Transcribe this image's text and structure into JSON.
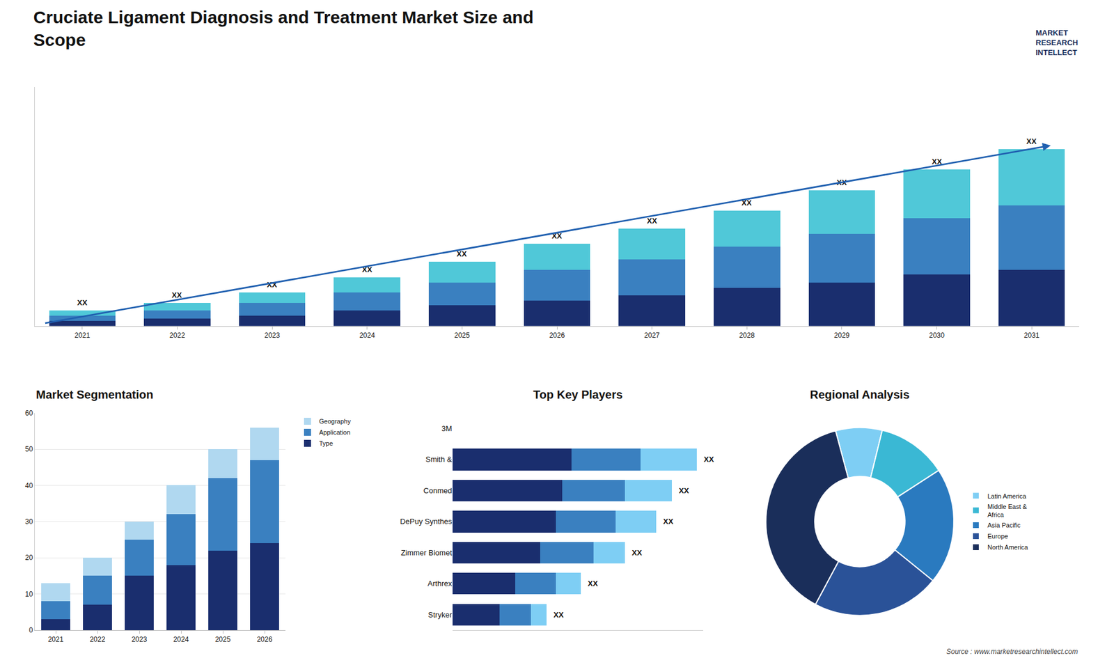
{
  "title": "Cruciate Ligament Diagnosis and Treatment Market Size and\nScope",
  "annotations": [
    "MARKET\nRESEARCH\nINTELLECT",
    "Source : www.marketresearchintellect.com"
  ],
  "chart_data": [
    {
      "type": "bar",
      "stacked": true,
      "categories": [
        2021,
        2022,
        2023,
        2024,
        2025,
        2026,
        2027,
        2028,
        2029,
        2030,
        2031
      ],
      "series": [
        {
          "color": "#1a2e6e",
          "values": [
            2,
            3,
            4,
            6,
            8,
            10,
            12,
            15,
            17,
            20,
            22
          ]
        },
        {
          "color": "#3a80c0",
          "values": [
            2,
            3,
            5,
            7,
            9,
            12,
            14,
            16,
            19,
            22,
            25
          ]
        },
        {
          "color": "#50c8d8",
          "values": [
            2,
            3,
            4,
            6,
            8,
            10,
            12,
            14,
            17,
            19,
            22
          ]
        }
      ],
      "annotations": [
        "XX",
        "XX",
        "XX",
        "XX",
        "XX",
        "XX",
        "XX",
        "XX",
        "XX",
        "XX",
        "XX"
      ],
      "ylim": [
        0,
        93.15
      ],
      "tick_labels": "x",
      "grid": false
    },
    {
      "type": "bar",
      "title": "Market Segmentation",
      "stacked": true,
      "categories": [
        2021,
        2022,
        2023,
        2024,
        2025,
        2026
      ],
      "series": [
        {
          "name": "Type",
          "color": "#1a2e6e",
          "values": [
            3,
            7,
            15,
            18,
            22,
            24
          ]
        },
        {
          "name": "Application",
          "color": "#3a80c0",
          "values": [
            5,
            8,
            10,
            14,
            20,
            23
          ]
        },
        {
          "name": "Geography",
          "color": "#b0d8f0",
          "values": [
            5,
            5,
            5,
            8,
            8,
            9
          ]
        }
      ],
      "ylim": [
        0,
        60
      ],
      "yticks": [
        0,
        10,
        20,
        30,
        40,
        50,
        60
      ],
      "grid": true,
      "legend": "right"
    },
    {
      "type": "bar",
      "title": "Top Key Players",
      "orientation": "horizontal",
      "stacked": true,
      "categories": [
        "3M",
        "Smith &",
        "Conmed",
        "DePuy Synthes",
        "Zimmer Biomet",
        "Arthrex",
        "Stryker"
      ],
      "series": [
        {
          "color": "#1a2e6e",
          "values": [
            0,
            38,
            35,
            33,
            28,
            20,
            15
          ]
        },
        {
          "color": "#3a80c0",
          "values": [
            0,
            22,
            20,
            19,
            17,
            13,
            10
          ]
        },
        {
          "color": "#7ecef4",
          "values": [
            0,
            18,
            15,
            13,
            10,
            8,
            5
          ]
        }
      ],
      "annotations": [
        null,
        "XX",
        "XX",
        "XX",
        "XX",
        "XX",
        "XX"
      ],
      "xlim": [
        0,
        80
      ],
      "tick_labels": "y",
      "grid": false
    },
    {
      "type": "donut",
      "title": "Regional Analysis",
      "categories": [
        "Latin America",
        "Middle East &\nAfrica",
        "Asia Pacific",
        "Europe",
        "North America"
      ],
      "values": [
        8,
        12,
        20,
        22,
        38
      ],
      "colors": [
        "#7ecef4",
        "#3ab8d4",
        "#2a7abf",
        "#2a5298",
        "#1a2e5a"
      ],
      "legend": "right"
    }
  ]
}
